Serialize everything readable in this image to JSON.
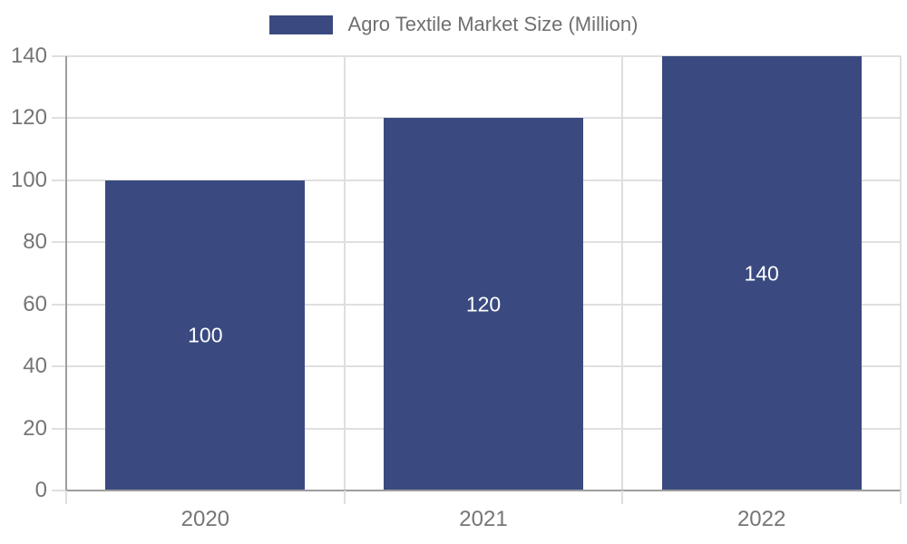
{
  "chart_data": {
    "type": "bar",
    "title": "Agro Textile Market Size (Million)",
    "categories": [
      "2020",
      "2021",
      "2022"
    ],
    "values": [
      100,
      120,
      140
    ],
    "bar_value_labels": [
      "100",
      "120",
      "140"
    ],
    "xlabel": "",
    "ylabel": "",
    "ylim": [
      0,
      140
    ],
    "yticks": [
      0,
      20,
      40,
      60,
      80,
      100,
      120,
      140
    ],
    "grid": true,
    "legend_position": "top-center",
    "colors": {
      "bar": "#3A4A80",
      "bar_label": "#FFFFFF",
      "grid": "#DFDFDF",
      "axis": "#9E9E9E",
      "tick_label": "#757575",
      "legend_text": "#6F6F6F",
      "background": "#FFFFFF"
    }
  }
}
